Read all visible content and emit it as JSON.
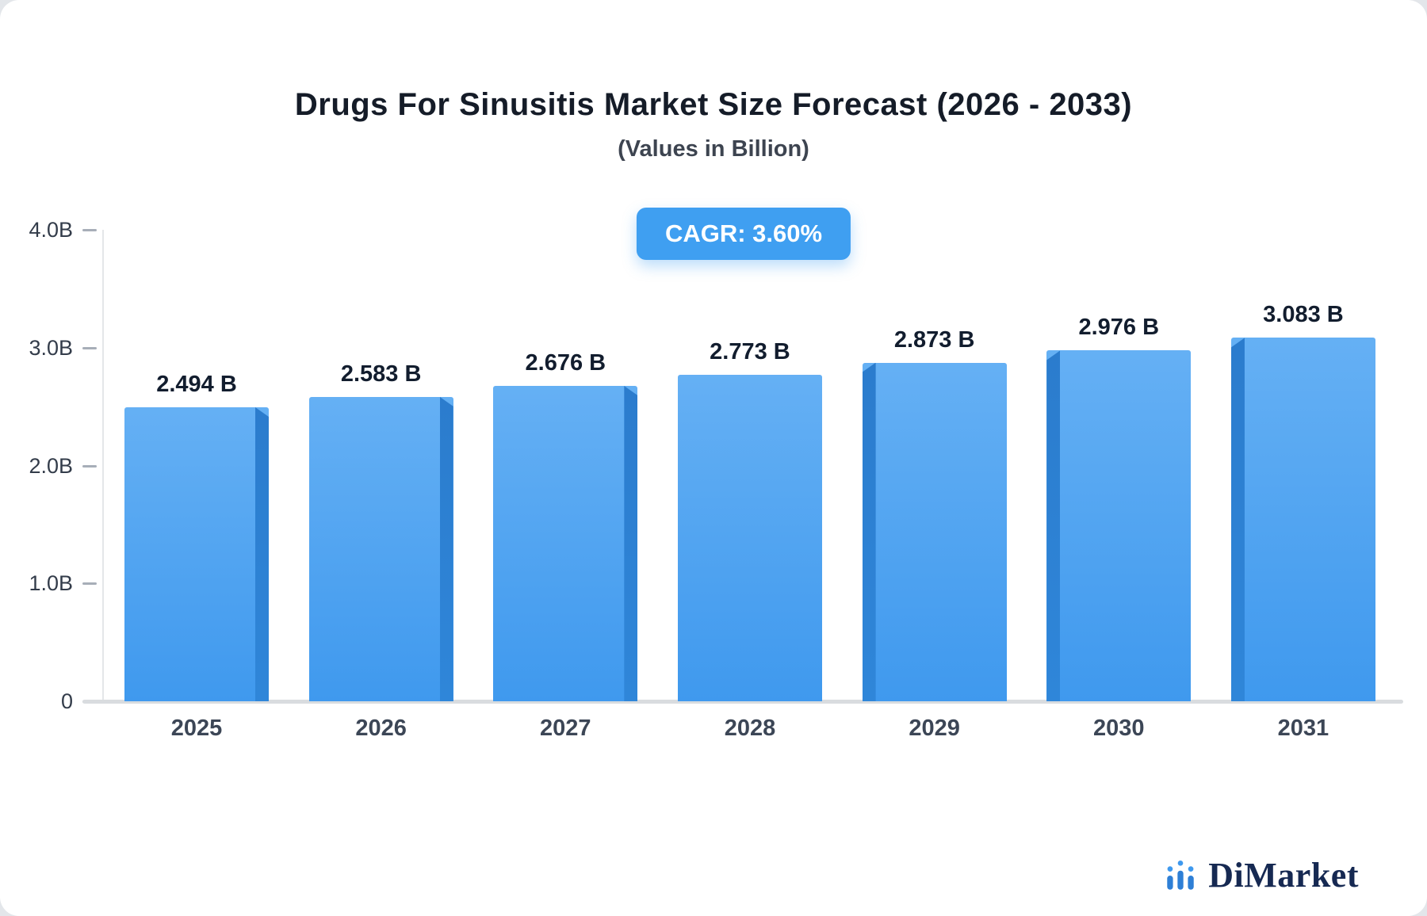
{
  "page": {
    "title": "Drugs For Sinusitis Market Size Forecast (2026 - 2033)",
    "subtitle": "(Values in Billion)",
    "cagr_label": "CAGR: 3.60%",
    "logo_text": "DiMarket"
  },
  "colors": {
    "badge_blue": "#3f9ff1",
    "bar_top": "#65b0f4",
    "bar_bottom": "#3f99ee",
    "bar_side": "#2b7ccd",
    "logo_navy": "#162952",
    "logo_icon_blue": "#2e7fd6"
  },
  "chart_data": {
    "type": "bar",
    "title": "Drugs For Sinusitis Market Size Forecast (2026 - 2033)",
    "subtitle": "(Values in Billion)",
    "unit": "Billion",
    "cagr": "3.60%",
    "categories": [
      "2025",
      "2026",
      "2027",
      "2028",
      "2029",
      "2030",
      "2031"
    ],
    "values": [
      2.494,
      2.583,
      2.676,
      2.773,
      2.873,
      2.976,
      3.083
    ],
    "value_labels": [
      "2.494 B",
      "2.583 B",
      "2.676 B",
      "2.773 B",
      "2.873 B",
      "2.976 B",
      "3.083 B"
    ],
    "ylim": [
      0,
      4.0
    ],
    "yticks": [
      {
        "value": 4.0,
        "label": "4.0B"
      },
      {
        "value": 3.0,
        "label": "3.0B"
      },
      {
        "value": 2.0,
        "label": "2.0B"
      },
      {
        "value": 1.0,
        "label": "1.0B"
      },
      {
        "value": 0,
        "label": "0"
      }
    ],
    "grid": false,
    "legend": "none",
    "xlabel": "",
    "ylabel": ""
  }
}
